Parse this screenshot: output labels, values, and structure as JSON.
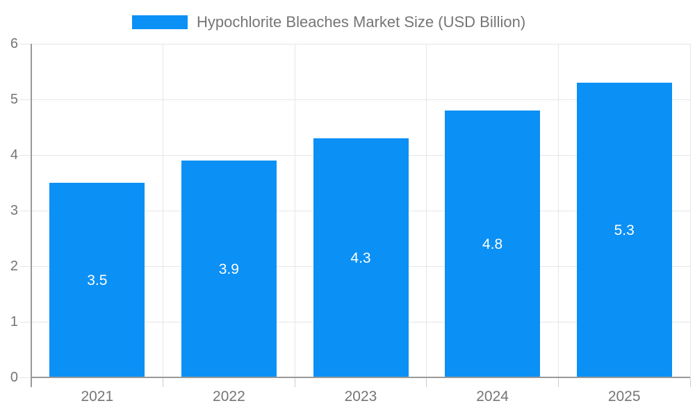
{
  "legend": {
    "label": "Hypochlorite Bleaches Market Size (USD Billion)",
    "swatch_color": "#0b90f5"
  },
  "chart_data": {
    "type": "bar",
    "title": "Hypochlorite Bleaches Market Size (USD Billion)",
    "categories": [
      "2021",
      "2022",
      "2023",
      "2024",
      "2025"
    ],
    "values": [
      3.5,
      3.9,
      4.3,
      4.8,
      5.3
    ],
    "value_labels": [
      "3.5",
      "3.9",
      "4.3",
      "4.8",
      "5.3"
    ],
    "xlabel": "",
    "ylabel": "",
    "ylim": [
      0,
      6
    ],
    "ytick_labels": [
      "0",
      "1",
      "2",
      "3",
      "4",
      "5",
      "6"
    ],
    "grid": "on",
    "legend_position": "top",
    "colors": {
      "bar": "#0b90f5",
      "value_label": "#ffffff",
      "axis": "#999999",
      "gridline": "#e6e6e6",
      "tick": "#cccccc",
      "text": "#757575"
    }
  }
}
